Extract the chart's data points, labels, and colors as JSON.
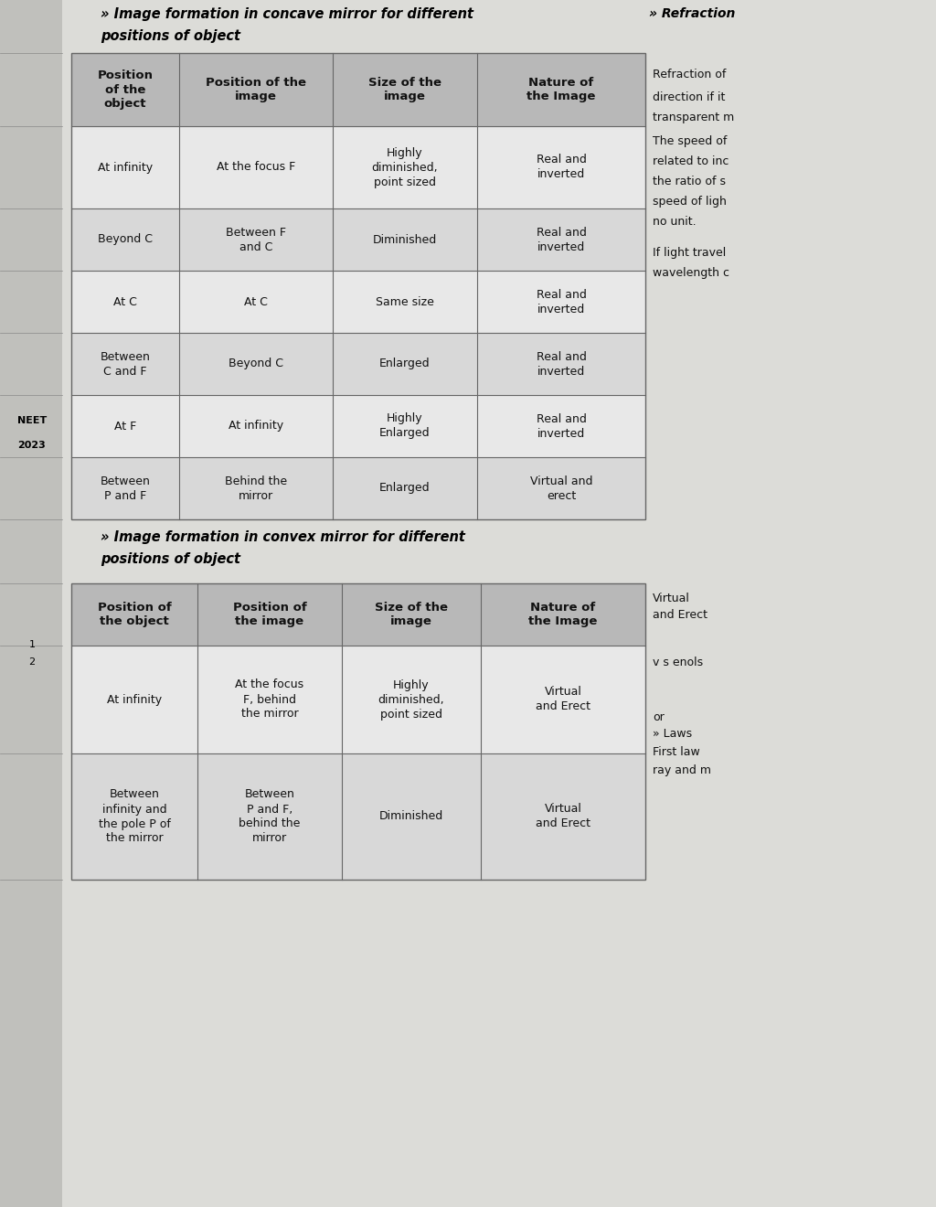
{
  "title1_line1": "» Image formation in concave mirror for different",
  "title1_line2": "positions of object",
  "title2_line1": "» Image formation in convex mirror for different",
  "title2_line2": "positions of object",
  "concave_headers": [
    "Position\nof the\nobject",
    "Position of the\nimage",
    "Size of the\nimage",
    "Nature of\nthe Image"
  ],
  "concave_rows": [
    [
      "At infinity",
      "At the focus F",
      "Highly\ndiminished,\npoint sized",
      "Real and\ninverted"
    ],
    [
      "Beyond C",
      "Between F\nand C",
      "Diminished",
      "Real and\ninverted"
    ],
    [
      "At C",
      "At C",
      "Same size",
      "Real and\ninverted"
    ],
    [
      "Between\nC and F",
      "Beyond C",
      "Enlarged",
      "Real and\ninverted"
    ],
    [
      "At F",
      "At infinity",
      "Highly\nEnlarged",
      "Real and\ninverted"
    ],
    [
      "Between\nP and F",
      "Behind the\nmirror",
      "Enlarged",
      "Virtual and\nerect"
    ]
  ],
  "convex_headers": [
    "Position of\nthe object",
    "Position of\nthe image",
    "Size of the\nimage",
    "Nature of\nthe Image"
  ],
  "convex_rows": [
    [
      "At infinity",
      "At the focus\nF, behind\nthe mirror",
      "Highly\ndiminished,\npoint sized",
      "Virtual\nand Erect"
    ],
    [
      "Between\ninfinity and\nthe pole P of\nthe mirror",
      "Between\nP and F,\nbehind the\nmirror",
      "Diminished",
      "Virtual\nand Erect"
    ]
  ],
  "right_col_texts": [
    [
      0.05,
      "» Refraction"
    ],
    [
      0.1,
      "Refraction of"
    ],
    [
      0.14,
      "direction if it"
    ],
    [
      0.18,
      "transparent m"
    ],
    [
      0.22,
      "The speed of"
    ],
    [
      0.26,
      "related to inc"
    ],
    [
      0.3,
      "the ratio of s"
    ],
    [
      0.34,
      "speed of ligh"
    ],
    [
      0.38,
      "no unit."
    ],
    [
      0.44,
      "If light travel"
    ],
    [
      0.48,
      "wavelength c"
    ]
  ],
  "sidebar_texts": [
    [
      0.345,
      "NEET"
    ],
    [
      0.365,
      "2023"
    ],
    [
      0.53,
      "1"
    ],
    [
      0.545,
      "2"
    ]
  ],
  "header_bg": "#b8b8b8",
  "row_bg_light": "#e8e8e8",
  "row_bg_mid": "#d8d8d8",
  "title_color": "#000000",
  "text_color": "#111111",
  "line_color": "#666666",
  "page_bg": "#c8c8c4",
  "content_bg": "#dcdcd8"
}
